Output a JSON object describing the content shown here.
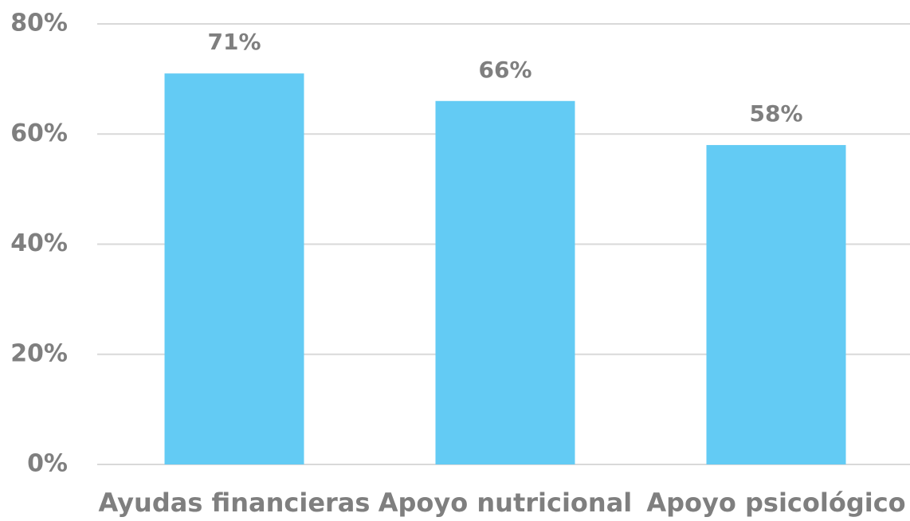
{
  "chart_data": {
    "type": "bar",
    "categories": [
      "Ayudas financieras",
      "Apoyo nutricional",
      "Apoyo psicológico"
    ],
    "values": [
      71,
      66,
      58
    ],
    "value_labels": [
      "71%",
      "66%",
      "58%"
    ],
    "color": "#63cbf4",
    "ylim": [
      0,
      80
    ],
    "yticks": [
      {
        "value": 0,
        "label": "0%"
      },
      {
        "value": 20,
        "label": "20%"
      },
      {
        "value": 40,
        "label": "40%"
      },
      {
        "value": 60,
        "label": "60%"
      },
      {
        "value": 80,
        "label": "80%"
      }
    ],
    "grid": true
  }
}
